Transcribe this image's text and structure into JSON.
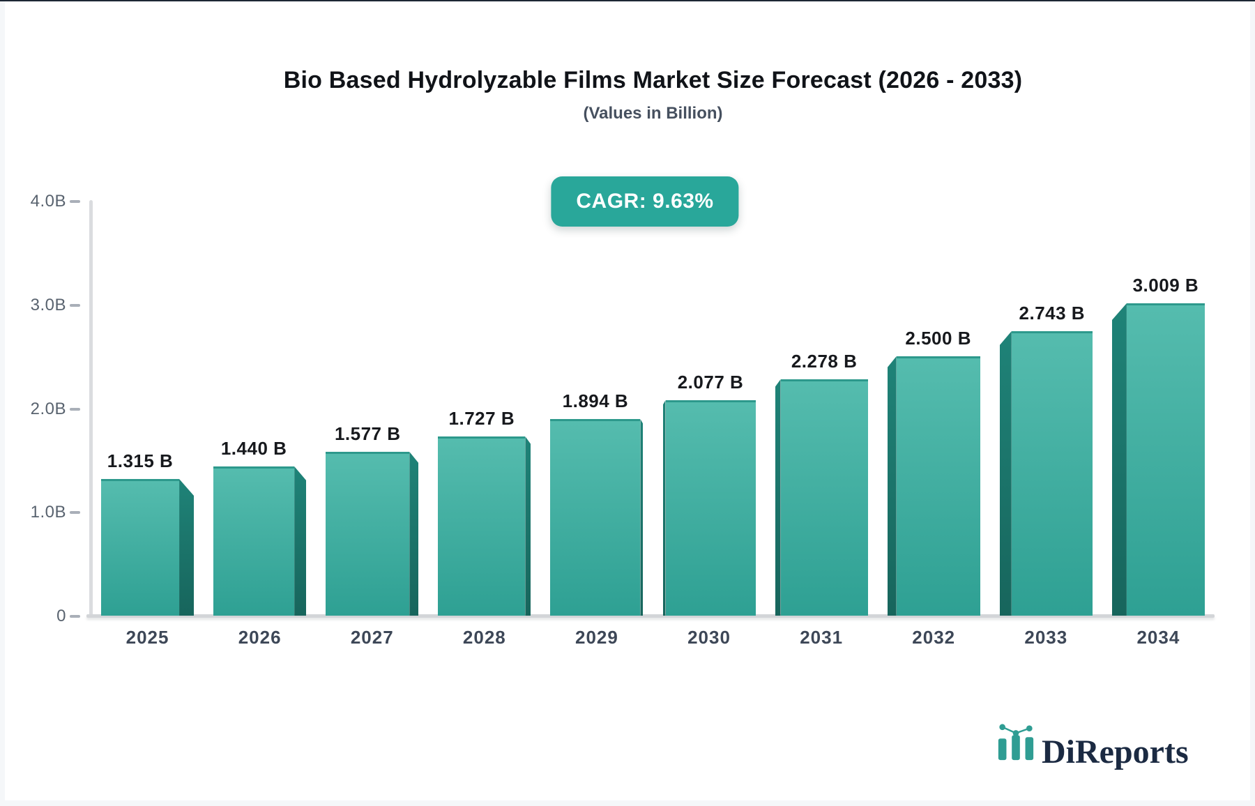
{
  "chart_data": {
    "type": "bar",
    "title": "Bio Based Hydrolyzable Films Market Size Forecast (2026 - 2033)",
    "subtitle": "(Values in Billion)",
    "badge": "CAGR: 9.63%",
    "categories": [
      "2025",
      "2026",
      "2027",
      "2028",
      "2029",
      "2030",
      "2031",
      "2032",
      "2033",
      "2034"
    ],
    "values": [
      1.315,
      1.44,
      1.577,
      1.727,
      1.894,
      2.077,
      2.278,
      2.5,
      2.743,
      3.009
    ],
    "value_labels": [
      "1.315 B",
      "1.440 B",
      "1.577 B",
      "1.727 B",
      "1.894 B",
      "2.077 B",
      "2.278 B",
      "2.500 B",
      "2.743 B",
      "3.009 B"
    ],
    "y_ticks": [
      "4.0B",
      "3.0B",
      "2.0B",
      "1.0B",
      "0"
    ],
    "ylim": [
      0,
      4.0
    ],
    "grid": "off",
    "legend": "none",
    "bar_color": "#35a99b",
    "bar_side_color": "#1e7d72",
    "accent_color": "#29a79a"
  },
  "brand": {
    "name": "DiReports",
    "icon": "direports-bars-icon"
  }
}
